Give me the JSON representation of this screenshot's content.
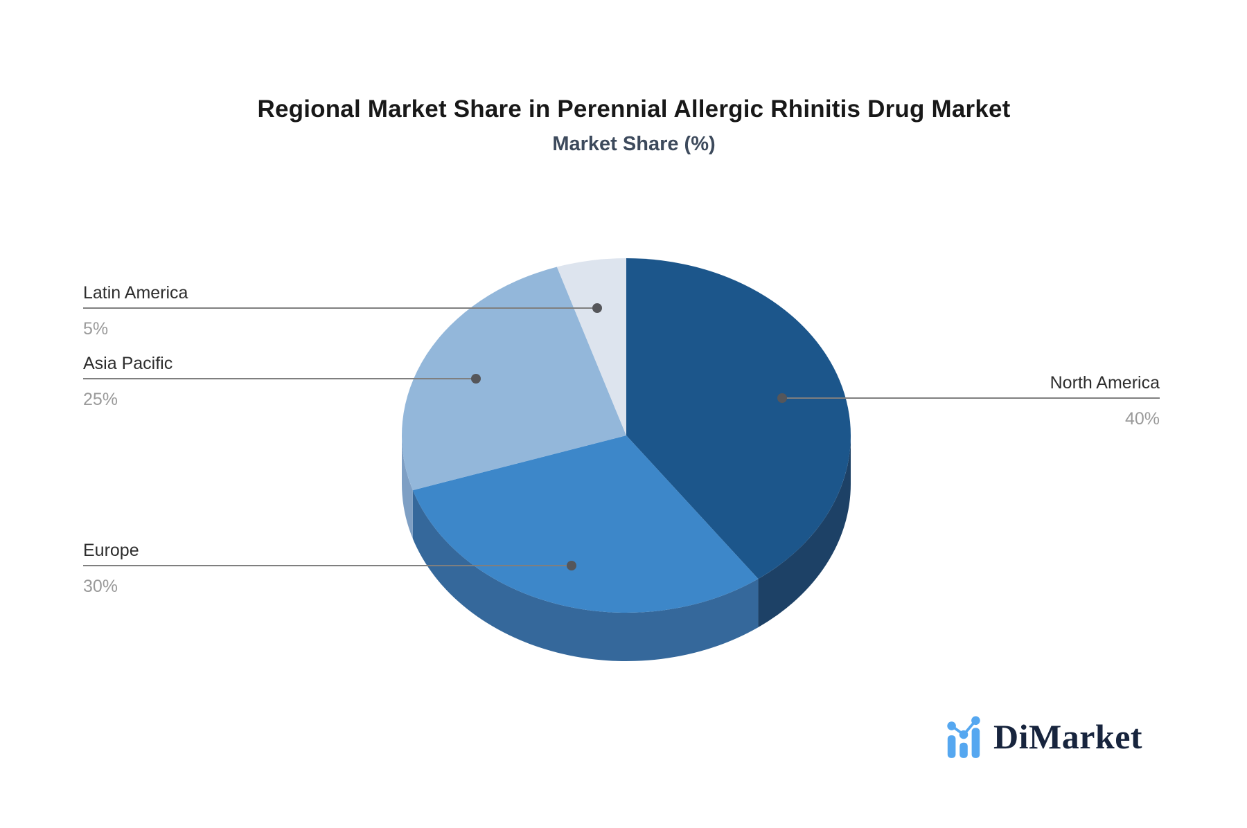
{
  "header": {
    "title": "Regional Market Share in Perennial Allergic Rhinitis Drug Market",
    "subtitle": "Market Share (%)",
    "title_color": "#181818",
    "subtitle_color": "#3d4a5c"
  },
  "chart_data": {
    "type": "pie",
    "title": "Regional Market Share in Perennial Allergic Rhinitis Drug Market",
    "subtitle": "Market Share (%)",
    "unit": "%",
    "effect": "3d",
    "direction": "clockwise",
    "start_angle_deg": 0,
    "labels": [
      "North America",
      "Europe",
      "Asia Pacific",
      "Latin America"
    ],
    "values": [
      40,
      30,
      25,
      5
    ],
    "display_values": [
      "40%",
      "30%",
      "25%",
      "5%"
    ],
    "colors": [
      "#1c568b",
      "#3d87c9",
      "#93b7da",
      "#dde4ee"
    ],
    "side_colors": [
      "#1d4166",
      "#35689b",
      "#7e9fc4",
      "#c8d2e0"
    ],
    "leader_line_color": "#7f7f7f",
    "leader_dot_color": "#55565a",
    "label_color": "#2d2d2d",
    "value_color": "#9a9a9a",
    "legend_position": "none",
    "background": "#ffffff"
  },
  "logo": {
    "text": "DiMarket",
    "text_color": "#17243d",
    "icon": "bar-line-chart-icon",
    "icon_color": "#55a7f0"
  }
}
